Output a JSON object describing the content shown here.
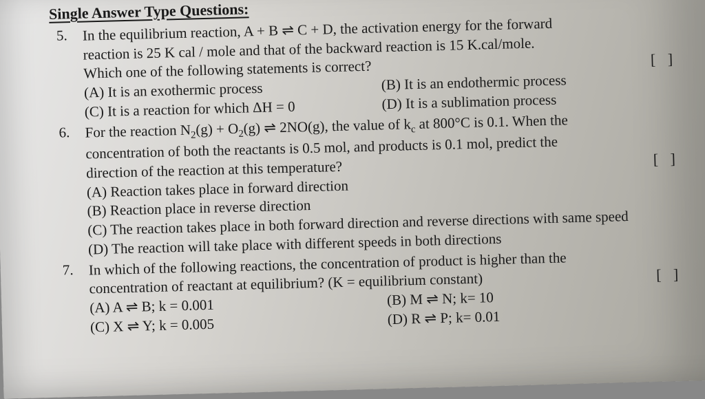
{
  "header": "Single Answer Type Questions:",
  "margin_cut": "1",
  "q5": {
    "num": "5.",
    "line1": "In the equilibrium reaction, A + B ⇌ C + D, the activation energy for the forward",
    "line2": "reaction is 25 K cal / mole and that of the backward reaction is 15 K.cal/mole.",
    "line3": "Which one of the following statements is correct?",
    "bracket": "[   ]",
    "optA": "(A) It is an exothermic process",
    "optB": "(B) It is an endothermic process",
    "optC": "(C) It is a reaction for which ΔH = 0",
    "optD": "(D) It is a sublimation process"
  },
  "q6": {
    "num": "6.",
    "line1_a": "For the reaction N",
    "line1_b": "(g) + O",
    "line1_c": "(g) ⇌ 2NO(g), the value of k",
    "line1_d": " at 800°C is 0.1. When the",
    "sub2a": "2",
    "sub2b": "2",
    "subc": "c",
    "line2": "concentration of both the reactants is 0.5 mol, and products is 0.1 mol, predict the",
    "line3": "direction of the reaction at this temperature?",
    "bracket": "[   ]",
    "optA": "(A) Reaction takes place in forward direction",
    "optB": "(B) Reaction place in reverse direction",
    "optC": "(C) The reaction takes place in both forward direction and reverse directions with same speed",
    "optD": "(D) The reaction will take place with different speeds in both directions"
  },
  "q7": {
    "num": "7.",
    "line1": "In which of the following reactions, the concentration of product is higher than the",
    "line2": "concentration of reactant at equilibrium? (K = equilibrium constant)",
    "bracket": "[   ]",
    "optA": "(A) A ⇌ B; k = 0.001",
    "optB": "(B) M ⇌ N; k= 10",
    "optC": "(C) X ⇌ Y; k = 0.005",
    "optD": "(D) R ⇌ P; k= 0.01"
  }
}
